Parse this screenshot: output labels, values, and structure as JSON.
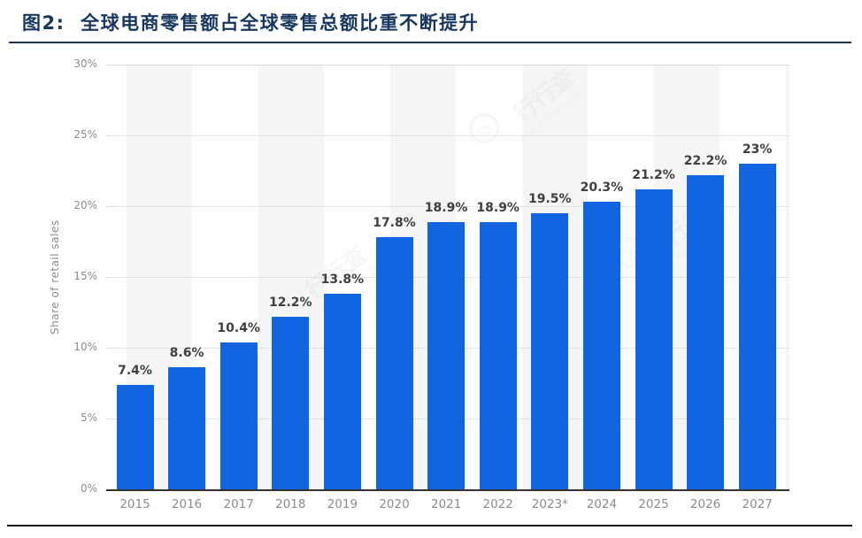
{
  "header": {
    "title": "图2:  全球电商零售额占全球零售总额比重不断提升"
  },
  "colors": {
    "bar": "#1165e0",
    "title": "#17375e",
    "axis": "#333333",
    "tick_label": "#8c8c8c",
    "value_label": "#3f3f3f",
    "background_band": "#f5f5f5"
  },
  "watermark": {
    "text": "行行查",
    "subtext": "hanghangcha.com"
  },
  "chart_data": {
    "type": "bar",
    "title": "",
    "categories": [
      "2015",
      "2016",
      "2017",
      "2018",
      "2019",
      "2020",
      "2021",
      "2022",
      "2023*",
      "2024",
      "2025",
      "2026",
      "2027"
    ],
    "values": [
      7.4,
      8.6,
      10.4,
      12.2,
      13.8,
      17.8,
      18.9,
      18.9,
      19.5,
      20.3,
      21.2,
      22.2,
      23
    ],
    "value_labels": [
      "7.4%",
      "8.6%",
      "10.4%",
      "12.2%",
      "13.8%",
      "17.8%",
      "18.9%",
      "18.9%",
      "19.5%",
      "20.3%",
      "21.2%",
      "22.2%",
      "23%"
    ],
    "xlabel": "",
    "ylabel": "Share of retail sales",
    "ylim": [
      0,
      30
    ],
    "ytick_step": 5,
    "yticks": [
      "0%",
      "5%",
      "10%",
      "15%",
      "20%",
      "25%",
      "30%"
    ],
    "grid": "horizontal-dotted",
    "legend": "none",
    "background_bands": true
  }
}
